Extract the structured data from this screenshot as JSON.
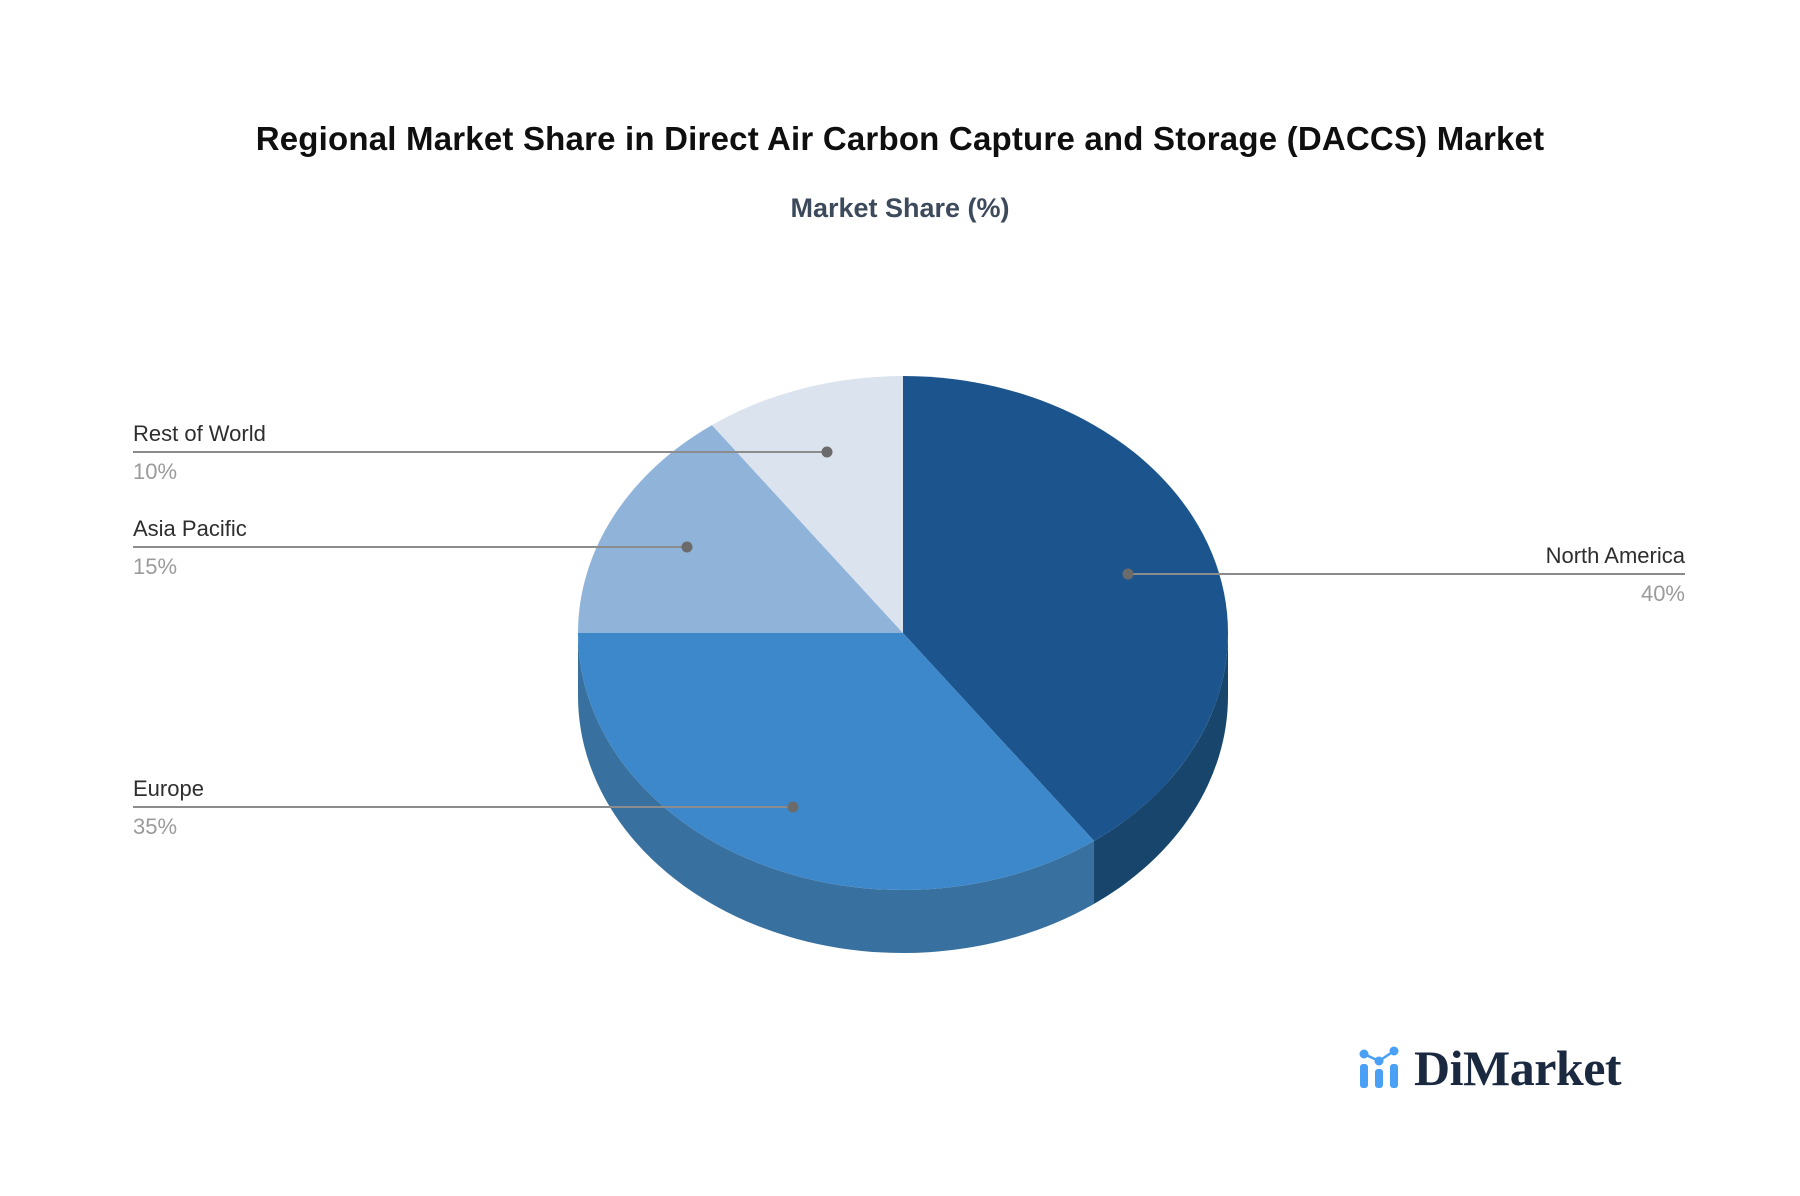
{
  "chart_data": {
    "type": "pie",
    "title": "Regional Market Share in Direct Air Carbon Capture and Storage (DACCS) Market",
    "subtitle": "Market Share (%)",
    "unit": "%",
    "effect": "3d",
    "start_angle_deg": 90,
    "direction": "clockwise",
    "labels_style": "leader-lines",
    "legend_position": "none",
    "slices": [
      {
        "label": "North America",
        "value": 40,
        "pct_label": "40%",
        "color": "#1c558d",
        "side_color": "#17456b"
      },
      {
        "label": "Europe",
        "value": 35,
        "pct_label": "35%",
        "color": "#3d88ca",
        "side_color": "#38719f"
      },
      {
        "label": "Asia Pacific",
        "value": 15,
        "pct_label": "15%",
        "color": "#90b4d9"
      },
      {
        "label": "Rest of World",
        "value": 10,
        "pct_label": "10%",
        "color": "#dbe3ee"
      }
    ],
    "leader_line_color": "#8c8c8c",
    "leader_dot_color": "#6b6b6b"
  },
  "branding": {
    "logo_text": "DiMarket",
    "logo_icon": "bar-line-chart-icon",
    "logo_text_color": "#1a2840",
    "logo_icon_color": "#49a0f5"
  }
}
